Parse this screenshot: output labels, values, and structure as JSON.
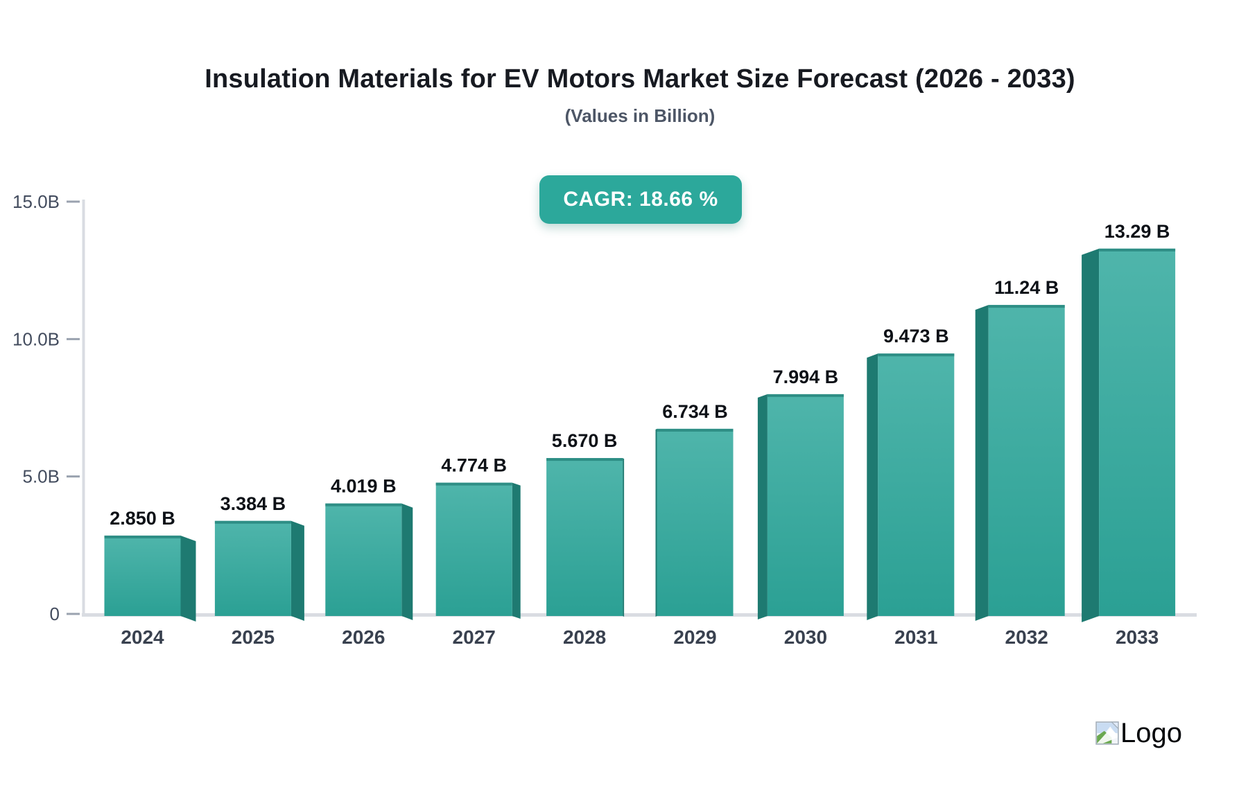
{
  "header": {
    "title": "Insulation Materials for EV Motors Market Size Forecast (2026 - 2033)",
    "subtitle": "(Values in Billion)"
  },
  "badge": {
    "label": "CAGR: 18.66 %"
  },
  "logo": {
    "label": "Logo",
    "icon": "broken-image-icon"
  },
  "chart_data": {
    "type": "bar",
    "title": "Insulation Materials for EV Motors Market Size Forecast (2026 - 2033)",
    "subtitle": "(Values in Billion)",
    "categories": [
      "2024",
      "2025",
      "2026",
      "2027",
      "2028",
      "2029",
      "2030",
      "2031",
      "2032",
      "2033"
    ],
    "values": [
      2.85,
      3.384,
      4.019,
      4.774,
      5.67,
      6.734,
      7.994,
      9.473,
      11.24,
      13.29
    ],
    "value_labels": [
      "2.850 B",
      "3.384 B",
      "4.019 B",
      "4.774 B",
      "5.670 B",
      "6.734 B",
      "7.994 B",
      "9.473 B",
      "11.24 B",
      "13.29 B"
    ],
    "cagr_percent": 18.66,
    "xlabel": "",
    "ylabel": "",
    "ylim": [
      0,
      15
    ],
    "yticks": [
      {
        "value": 0,
        "label": "0"
      },
      {
        "value": 5,
        "label": "5.0B"
      },
      {
        "value": 10,
        "label": "10.0B"
      },
      {
        "value": 15,
        "label": "15.0B"
      }
    ],
    "grid": false,
    "legend": false,
    "bar_style": "3d",
    "colors": {
      "bar_face_top": "#4FB5AB",
      "bar_face_bottom": "#2BA094",
      "bar_side": "#1E7A71",
      "bar_top_edge": "#2E8E85",
      "axis_line": "#D9DCE2",
      "tick_mark": "#9AA2AF",
      "tick_label": "#434C5E",
      "category_label": "#39414F",
      "value_label": "#0D1117",
      "badge_bg": "#2CA89B",
      "badge_text": "#FFFFFF"
    }
  }
}
